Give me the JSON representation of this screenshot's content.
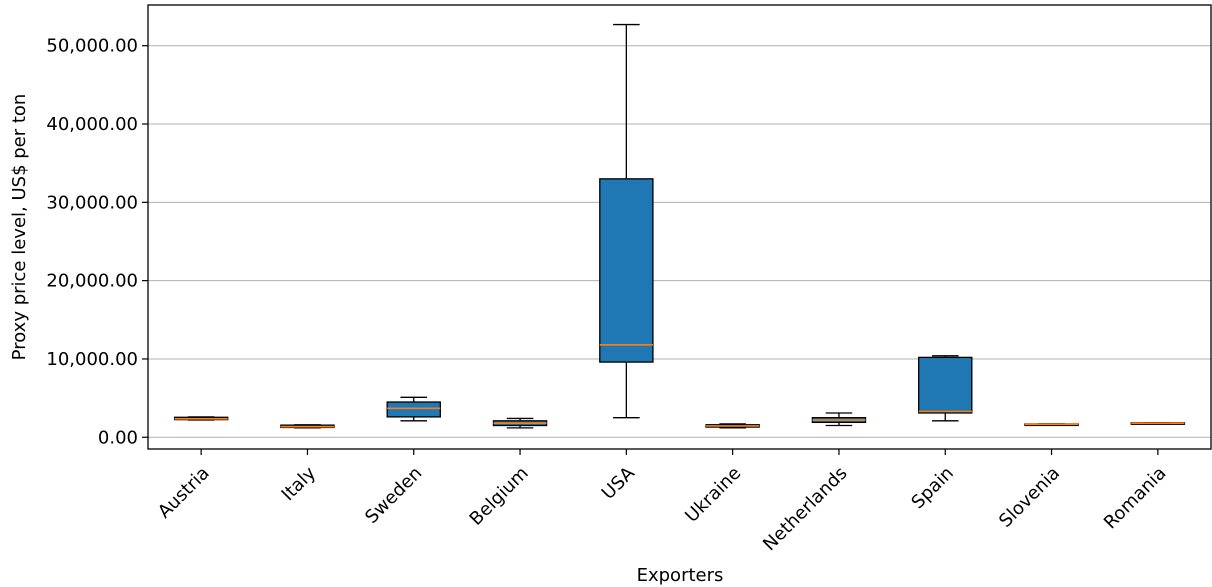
{
  "chart_data": {
    "type": "box",
    "xlabel": "Exporters",
    "ylabel": "Proxy price level, US$ per ton",
    "ylim": [
      -1500,
      55200
    ],
    "yticks": [
      0,
      10000,
      20000,
      30000,
      40000,
      50000
    ],
    "ytick_labels": [
      "0.00",
      "10,000.00",
      "20,000.00",
      "30,000.00",
      "40,000.00",
      "50,000.00"
    ],
    "grid": "horizontal",
    "box_color": "#1f77b4",
    "median_color": "#ff7f0e",
    "categories": [
      "Austria",
      "Italy",
      "Sweden",
      "Belgium",
      "USA",
      "Ukraine",
      "Netherlands",
      "Spain",
      "Slovenia",
      "Romania"
    ],
    "boxes": [
      {
        "label": "Austria",
        "whislo": 2200,
        "q1": 2250,
        "med": 2350,
        "q3": 2550,
        "whishi": 2600
      },
      {
        "label": "Italy",
        "whislo": 1200,
        "q1": 1250,
        "med": 1350,
        "q3": 1550,
        "whishi": 1600
      },
      {
        "label": "Sweden",
        "whislo": 2100,
        "q1": 2600,
        "med": 3700,
        "q3": 4500,
        "whishi": 5100
      },
      {
        "label": "Belgium",
        "whislo": 1200,
        "q1": 1500,
        "med": 1800,
        "q3": 2100,
        "whishi": 2400
      },
      {
        "label": "USA",
        "whislo": 2500,
        "q1": 9600,
        "med": 11800,
        "q3": 33000,
        "whishi": 52700
      },
      {
        "label": "Ukraine",
        "whislo": 1200,
        "q1": 1300,
        "med": 1450,
        "q3": 1600,
        "whishi": 1700
      },
      {
        "label": "Netherlands",
        "whislo": 1500,
        "q1": 1900,
        "med": 2200,
        "q3": 2500,
        "whishi": 3100
      },
      {
        "label": "Spain",
        "whislo": 2100,
        "q1": 3100,
        "med": 3300,
        "q3": 10200,
        "whishi": 10400
      },
      {
        "label": "Slovenia",
        "whislo": 1650,
        "q1": 1650,
        "med": 1650,
        "q3": 1700,
        "whishi": 1700
      },
      {
        "label": "Romania",
        "whislo": 1800,
        "q1": 1800,
        "med": 1800,
        "q3": 1850,
        "whishi": 1850
      }
    ]
  }
}
